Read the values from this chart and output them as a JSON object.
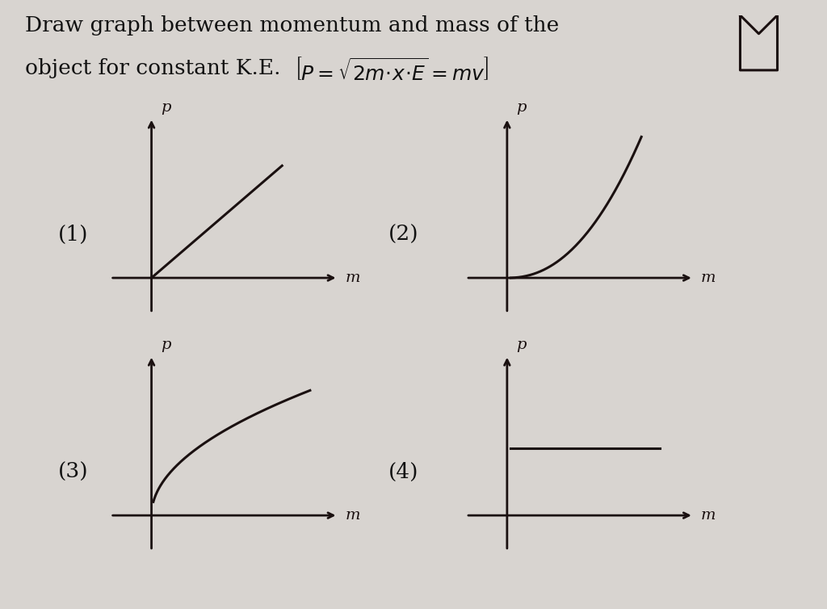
{
  "title_line1": "Draw graph between momentum and mass of the",
  "title_line2": "object for constant K.E. ",
  "bg_color": "#d8d4d0",
  "line_color": "#1a1010",
  "text_color": "#111111",
  "graph_labels": [
    "(1)",
    "(2)",
    "(3)",
    "(4)"
  ],
  "axis_label_p": "p",
  "axis_label_m": "m",
  "figsize": [
    10.24,
    7.54
  ],
  "dpi": 100
}
